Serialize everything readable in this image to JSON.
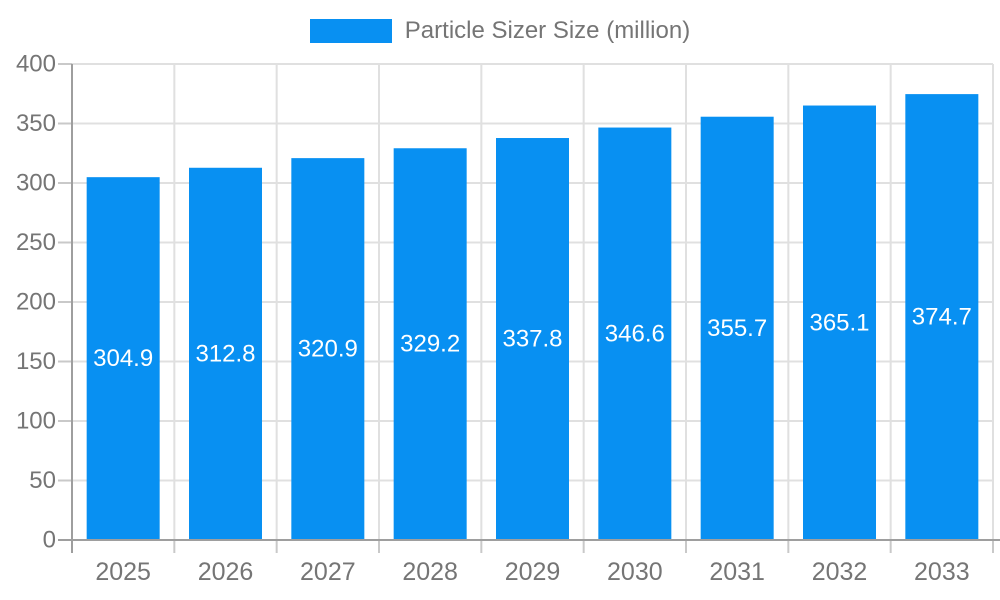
{
  "legend": {
    "label": "Particle Sizer Size (million)"
  },
  "colors": {
    "bar": "#0890F2",
    "grid": "#E0E0E0",
    "tick": "#C9C9C9",
    "axis": "#9E9E9E",
    "text": "#757575",
    "bar_label": "#FFFFFF",
    "background": "#FFFFFF"
  },
  "chart_data": {
    "type": "bar",
    "title": "",
    "xlabel": "",
    "ylabel": "",
    "categories": [
      "2025",
      "2026",
      "2027",
      "2028",
      "2029",
      "2030",
      "2031",
      "2032",
      "2033"
    ],
    "series": [
      {
        "name": "Particle Sizer Size (million)",
        "values": [
          304.9,
          312.8,
          320.9,
          329.2,
          337.8,
          346.6,
          355.7,
          365.1,
          374.7
        ]
      }
    ],
    "value_labels": [
      "304.9",
      "312.8",
      "320.9",
      "329.2",
      "337.8",
      "346.6",
      "355.7",
      "365.1",
      "374.7"
    ],
    "ylim": [
      0,
      400
    ],
    "ytick_step": 50,
    "ytick_labels": [
      "0",
      "50",
      "100",
      "150",
      "200",
      "250",
      "300",
      "350",
      "400"
    ],
    "grid": true,
    "legend_position": "top-center"
  }
}
